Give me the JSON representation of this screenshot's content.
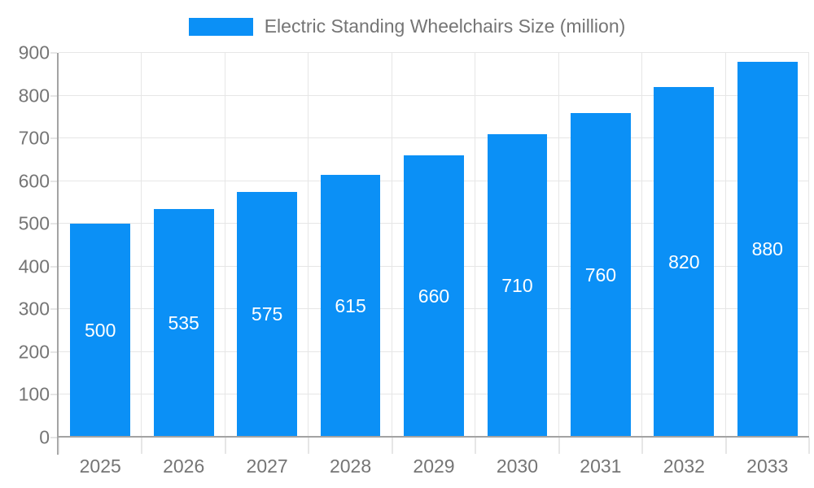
{
  "legend": {
    "label": "Electric Standing Wheelchairs Size (million)"
  },
  "colors": {
    "bar": "#0b90f6",
    "axis_line": "#a3a3a3",
    "gridline": "#e6e6e6",
    "tick": "#cccccc",
    "axis_label_text": "#757575",
    "value_label_text": "#ffffff",
    "background": "#ffffff"
  },
  "chart_data": {
    "type": "bar",
    "title": "Electric Standing Wheelchairs Size (million)",
    "categories": [
      "2025",
      "2026",
      "2027",
      "2028",
      "2029",
      "2030",
      "2031",
      "2032",
      "2033"
    ],
    "values": [
      500,
      535,
      575,
      615,
      660,
      710,
      760,
      820,
      880
    ],
    "xlabel": "",
    "ylabel": "",
    "ylim": [
      0,
      900
    ],
    "ytick_step": 100,
    "yticks": [
      0,
      100,
      200,
      300,
      400,
      500,
      600,
      700,
      800,
      900
    ],
    "grid": true,
    "legend_position": "top-center",
    "data_labels_position": "inside-center",
    "bar_color": "#0b90f6"
  }
}
